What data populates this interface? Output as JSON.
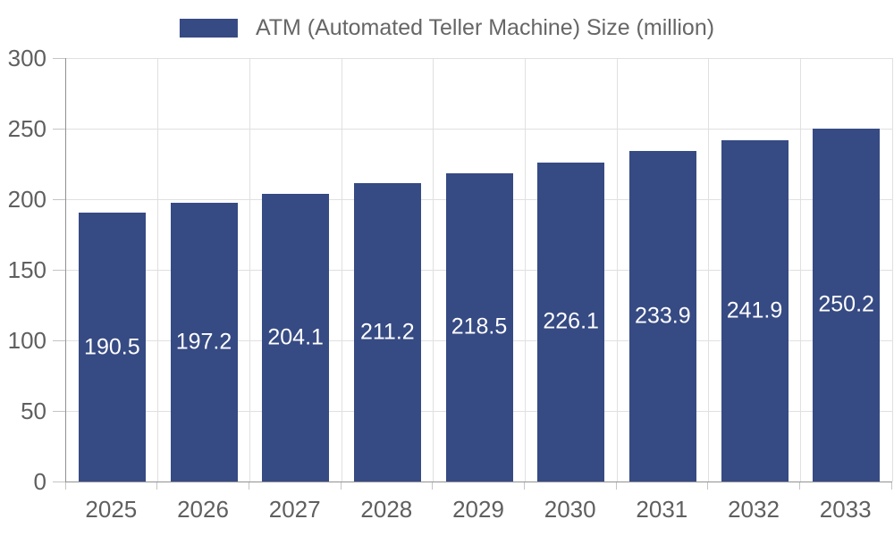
{
  "legend": {
    "label": "ATM (Automated Teller Machine) Size (million)"
  },
  "colors": {
    "bar": "#364a83",
    "axis": "#919191",
    "grid": "#e0e0e0",
    "tick": "#c4c4c4",
    "axis_label_text": "#5f5f5f",
    "legend_text": "#666666",
    "bar_label_text": "#ffffff",
    "background": "#ffffff"
  },
  "chart_data": {
    "type": "bar",
    "title": "ATM (Automated Teller Machine) Size (million)",
    "categories": [
      "2025",
      "2026",
      "2027",
      "2028",
      "2029",
      "2030",
      "2031",
      "2032",
      "2033"
    ],
    "series": [
      {
        "name": "ATM (Automated Teller Machine) Size (million)",
        "values": [
          190.5,
          197.2,
          204.1,
          211.2,
          218.5,
          226.1,
          233.9,
          241.9,
          250.2
        ],
        "color": "#364a83"
      }
    ],
    "xlabel": "",
    "ylabel": "",
    "ylim": [
      0,
      300
    ],
    "yticks": [
      0,
      50,
      100,
      150,
      200,
      250,
      300
    ],
    "grid": true,
    "legend_position": "top-center",
    "bar_value_labels": "inside-middle"
  }
}
